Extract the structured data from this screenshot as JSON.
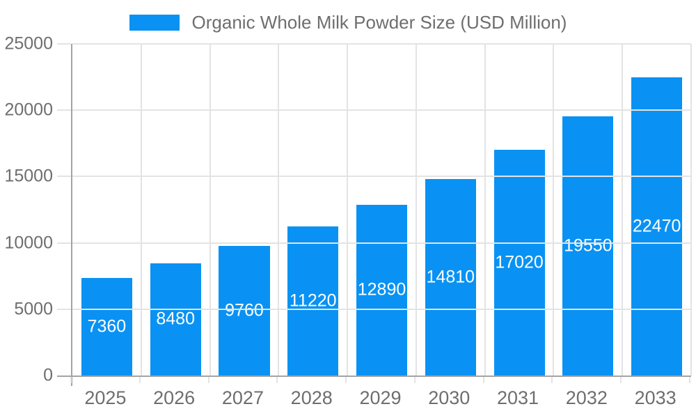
{
  "legend": {
    "items": [
      {
        "label": "Organic Whole Milk Powder Size (USD Million)",
        "color": "#0992f3"
      }
    ]
  },
  "chart_data": {
    "type": "bar",
    "title": "Organic Whole Milk Powder Size (USD Million)",
    "categories": [
      "2025",
      "2026",
      "2027",
      "2028",
      "2029",
      "2030",
      "2031",
      "2032",
      "2033"
    ],
    "values": [
      7360,
      8480,
      9760,
      11220,
      12890,
      14810,
      17020,
      19550,
      22470
    ],
    "series": [
      {
        "name": "Organic Whole Milk Powder Size (USD Million)",
        "values": [
          7360,
          8480,
          9760,
          11220,
          12890,
          14810,
          17020,
          19550,
          22470
        ]
      }
    ],
    "xlabel": "",
    "ylabel": "",
    "ylim": [
      0,
      25000
    ],
    "yticks": [
      0,
      5000,
      10000,
      15000,
      20000,
      25000
    ],
    "grid": true,
    "legend_position": "top",
    "value_labels": "inside-center",
    "colors": {
      "bar": "#0992f3",
      "value_label": "#ffffff",
      "axis_text": "#6e6e6e",
      "grid_line": "#e3e3e3",
      "axis_line": "#a3a3a3"
    }
  }
}
